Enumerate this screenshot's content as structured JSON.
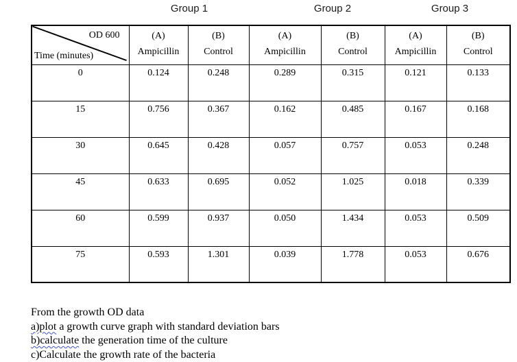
{
  "groups": [
    "Group 1",
    "Group 2",
    "Group 3"
  ],
  "table": {
    "corner": {
      "top_right": "OD 600",
      "bottom_left": "Time (minutes)"
    },
    "columns": [
      {
        "code": "(A)",
        "name": "Ampicillin"
      },
      {
        "code": "(B)",
        "name": "Control"
      },
      {
        "code": "(A)",
        "name": "Ampicillin"
      },
      {
        "code": "(B)",
        "name": "Control"
      },
      {
        "code": "(A)",
        "name": "Ampicillin"
      },
      {
        "code": "(B)",
        "name": "Control"
      }
    ],
    "rows": [
      {
        "time": "0",
        "values": [
          "0.124",
          "0.248",
          "0.289",
          "0.315",
          "0.121",
          "0.133"
        ]
      },
      {
        "time": "15",
        "values": [
          "0.756",
          "0.367",
          "0.162",
          "0.485",
          "0.167",
          "0.168"
        ]
      },
      {
        "time": "30",
        "values": [
          "0.645",
          "0.428",
          "0.057",
          "0.757",
          "0.053",
          "0.248"
        ]
      },
      {
        "time": "45",
        "values": [
          "0.633",
          "0.695",
          "0.052",
          "1.025",
          "0.018",
          "0.339"
        ]
      },
      {
        "time": "60",
        "values": [
          "0.599",
          "0.937",
          "0.050",
          "1.434",
          "0.053",
          "0.509"
        ]
      },
      {
        "time": "75",
        "values": [
          "0.593",
          "1.301",
          "0.039",
          "1.778",
          "0.053",
          "0.676"
        ]
      }
    ]
  },
  "notes": {
    "intro": "From the growth OD data",
    "items": [
      {
        "marked": "a)plot",
        "rest": " a growth curve graph with standard deviation bars",
        "misspelled": true
      },
      {
        "marked": "b)calculate",
        "rest": " the generation time of the culture",
        "misspelled": true
      },
      {
        "marked": "c)Calculate",
        "rest": " the growth rate of the bacteria",
        "misspelled": false
      }
    ]
  },
  "colors": {
    "squiggle": "#3c50cc",
    "border": "#000000",
    "text": "#000000",
    "background": "#ffffff"
  }
}
